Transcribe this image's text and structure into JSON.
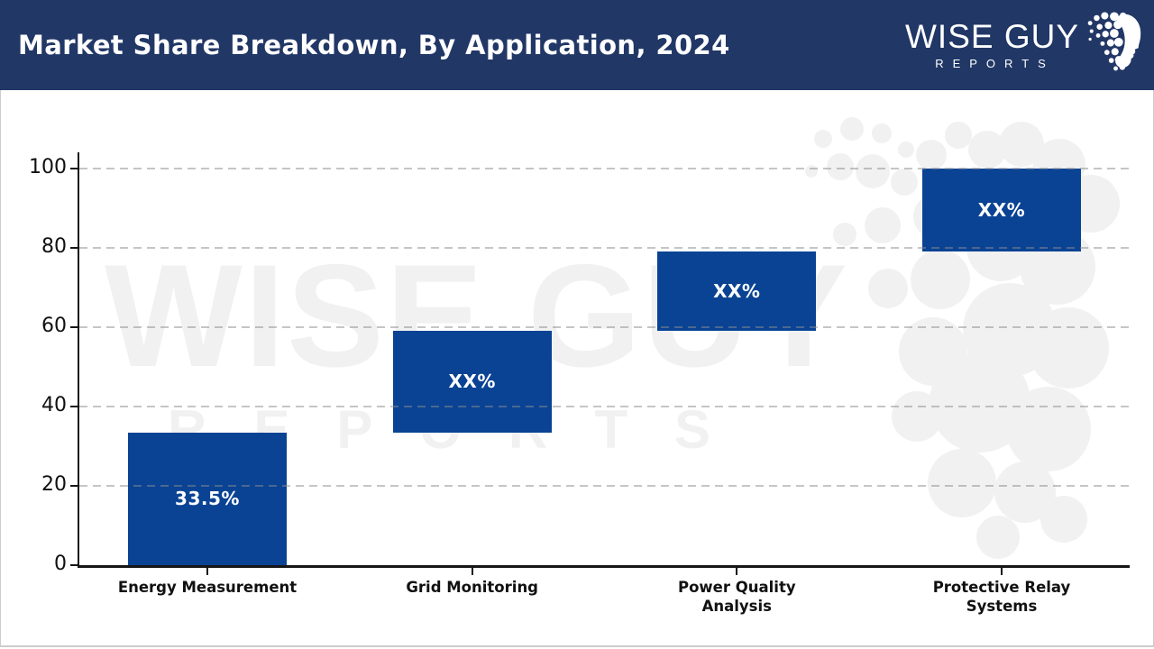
{
  "header": {
    "title": "Market Share Breakdown, By Application, 2024"
  },
  "logo": {
    "line1": "WISE GUY",
    "line2": "REPORTS"
  },
  "watermark": {
    "line1": "WISE GUY",
    "line2": "REPORTS"
  },
  "colors": {
    "header_bg": "#213766",
    "bar": "#0a4394",
    "title_text": "#ffffff",
    "watermark": "#f1f1f1",
    "axis": "#161616"
  },
  "chart_data": {
    "type": "bar",
    "variant": "waterfall",
    "title": "Market Share Breakdown, By Application, 2024",
    "categories": [
      "Energy Measurement",
      "Grid Monitoring",
      "Power Quality Analysis",
      "Protective Relay Systems"
    ],
    "category_lines": [
      [
        "Energy Measurement"
      ],
      [
        "Grid Monitoring"
      ],
      [
        "Power Quality",
        "Analysis"
      ],
      [
        "Protective Relay",
        "Systems"
      ]
    ],
    "bars": [
      {
        "category": "Energy Measurement",
        "start": 0,
        "end": 33.5,
        "label": "33.5%"
      },
      {
        "category": "Grid Monitoring",
        "start": 33.5,
        "end": 59,
        "label": "XX%"
      },
      {
        "category": "Power Quality Analysis",
        "start": 59,
        "end": 79,
        "label": "XX%"
      },
      {
        "category": "Protective Relay Systems",
        "start": 79,
        "end": 100,
        "label": "XX%"
      }
    ],
    "xlabel": "",
    "ylabel": "",
    "ylim": [
      0,
      100
    ],
    "yticks": [
      0,
      20,
      40,
      60,
      80,
      100
    ],
    "grid": "horizontal-dashed-above-bars",
    "legend": "none",
    "bar_color": "#0a4394",
    "value_label_color": "#ffffff"
  }
}
